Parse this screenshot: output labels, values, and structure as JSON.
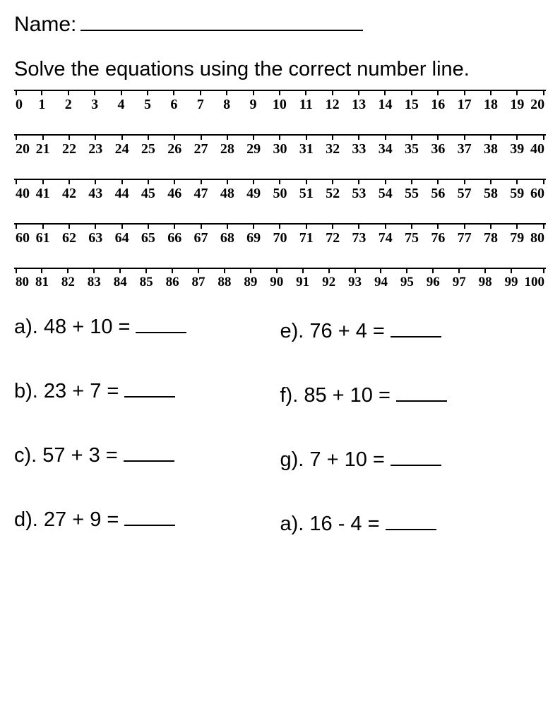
{
  "name_label": "Name:",
  "instructions": "Solve the equations using the correct  number line.",
  "number_lines": [
    {
      "start": 0,
      "end": 20
    },
    {
      "start": 20,
      "end": 40
    },
    {
      "start": 40,
      "end": 60
    },
    {
      "start": 60,
      "end": 80
    },
    {
      "start": 80,
      "end": 100
    }
  ],
  "problems_left": [
    {
      "label": "a).",
      "expr": "48 + 10 ="
    },
    {
      "label": "b).",
      "expr": "23 + 7 ="
    },
    {
      "label": "c).",
      "expr": "57 + 3 ="
    },
    {
      "label": "d).",
      "expr": "27 + 9 ="
    }
  ],
  "problems_right": [
    {
      "label": "e).",
      "expr": "76 + 4 ="
    },
    {
      "label": "f).",
      "expr": "85 + 10 ="
    },
    {
      "label": "g).",
      "expr": "7 + 10 ="
    },
    {
      "label": "a).",
      "expr": "16 - 4 ="
    }
  ],
  "style": {
    "background_color": "#ffffff",
    "text_color": "#000000",
    "line_color": "#000000",
    "name_fontsize": 30,
    "instructions_fontsize": 29,
    "problem_fontsize": 29,
    "numberline_fontsize": 20,
    "numberline_font": "Times New Roman",
    "body_font": "Arial"
  }
}
